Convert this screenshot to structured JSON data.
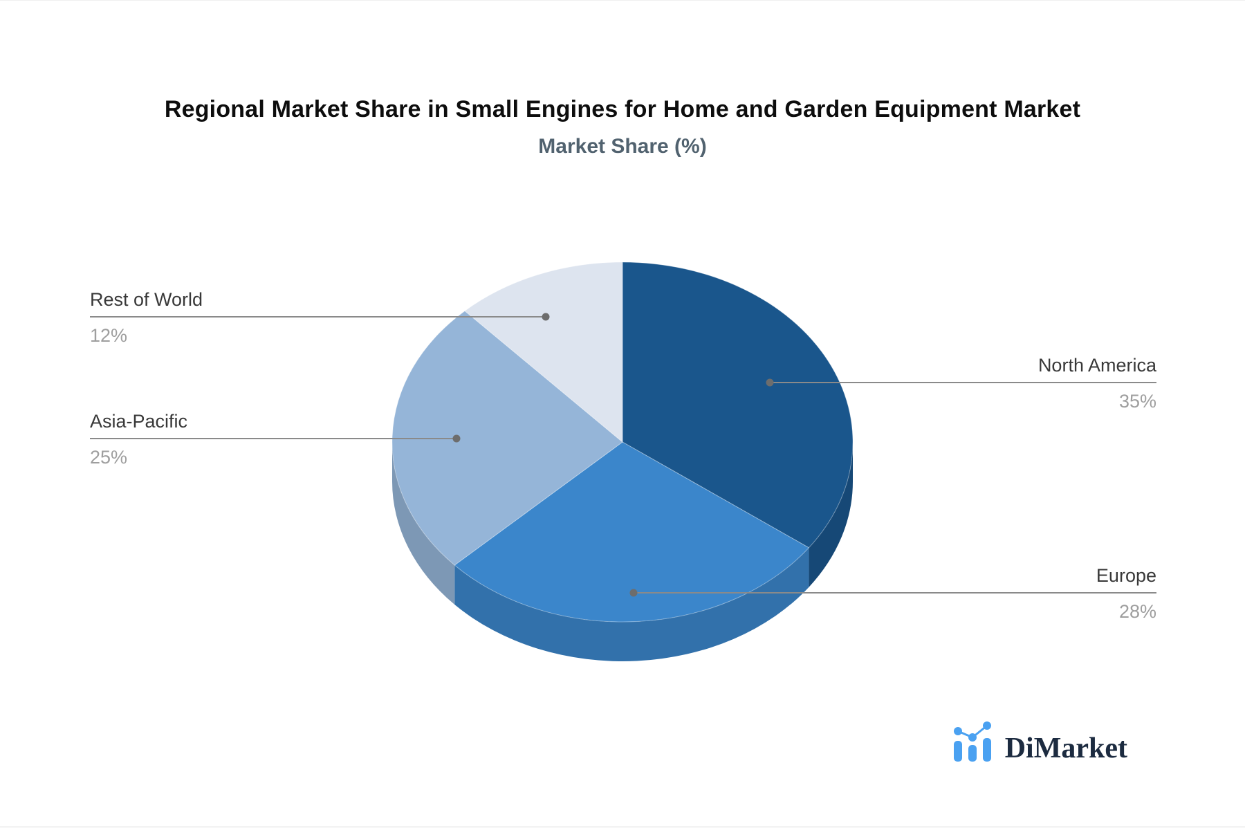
{
  "title": "Regional Market Share in Small Engines for Home and Garden Equipment Market",
  "subtitle": "Market Share (%)",
  "logo": {
    "text": "DiMarket"
  },
  "colors": {
    "slice_north_america": "#1a568c",
    "slice_europe": "#3b86cb",
    "slice_asia_pacific": "#95b5d8",
    "slice_rest_of_world": "#dde4ef",
    "connector_line": "#8a8a8a",
    "connector_dot": "#6d6d6d",
    "label_text": "#383838",
    "label_value": "#9e9e9e",
    "subtitle_text": "#51626f",
    "logo_blue": "#4aa1f1",
    "logo_navy": "#1c2b40"
  },
  "chart_data": {
    "type": "pie",
    "style": "3d",
    "title": "Regional Market Share in Small Engines for Home and Garden Equipment Market",
    "subtitle": "Market Share (%)",
    "unit": "%",
    "start_angle_deg": 0,
    "direction": "clockwise",
    "categories": [
      "North America",
      "Europe",
      "Asia-Pacific",
      "Rest of World"
    ],
    "values": [
      35,
      28,
      25,
      12
    ],
    "labels": [
      "35%",
      "28%",
      "25%",
      "12%"
    ],
    "colors": [
      "#1a568c",
      "#3b86cb",
      "#95b5d8",
      "#dde4ef"
    ],
    "legend_position": "connector-labels"
  }
}
